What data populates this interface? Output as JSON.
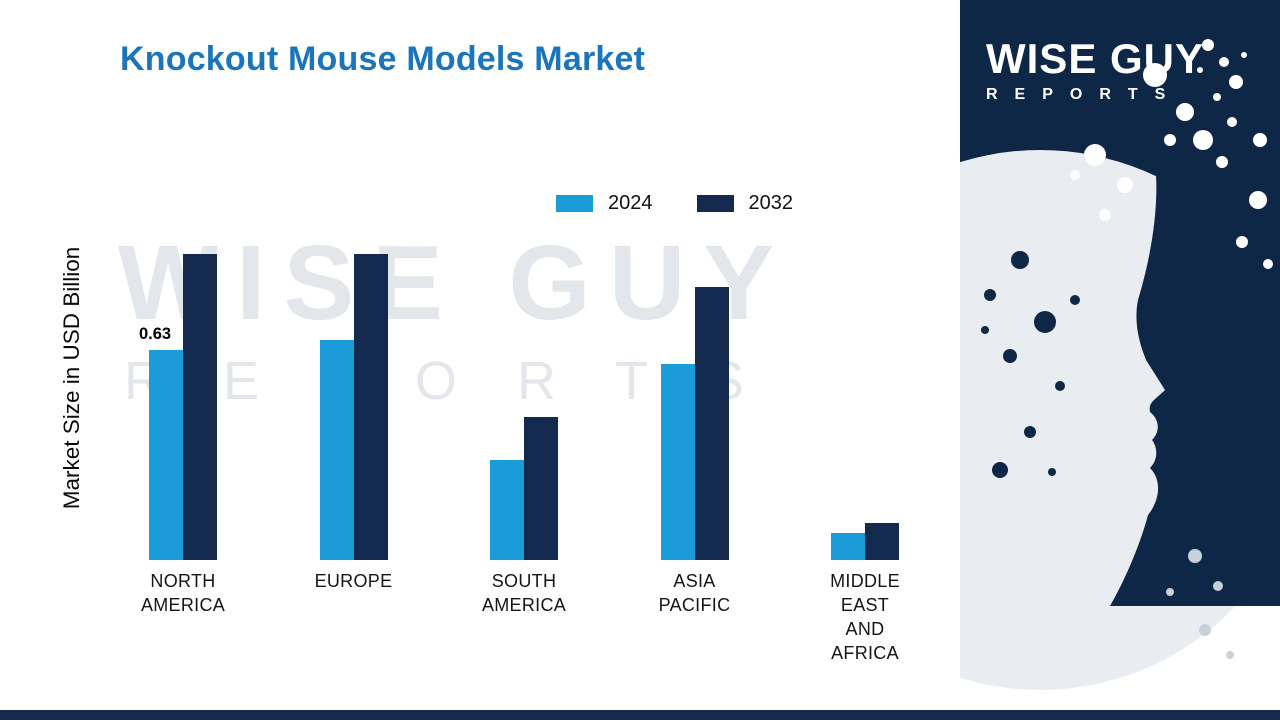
{
  "header": {
    "title": "Knockout Mouse Models Market"
  },
  "logo": {
    "name": "WISE GUY",
    "sub": "REPORTS"
  },
  "watermark": {
    "name": "WISE GUY",
    "sub": "REPORTS"
  },
  "chart_data": {
    "type": "bar",
    "title": "Knockout Mouse Models Market",
    "xlabel": "",
    "ylabel": "Market Size in USD Billion",
    "categories": [
      "NORTH AMERICA",
      "EUROPE",
      "SOUTH AMERICA",
      "ASIA PACIFIC",
      "MIDDLE EAST AND AFRICA"
    ],
    "series": [
      {
        "name": "2024",
        "color": "#1b9bd8",
        "values": [
          0.63,
          0.66,
          0.3,
          0.59,
          0.08
        ]
      },
      {
        "name": "2032",
        "color": "#13294d",
        "values": [
          0.92,
          0.92,
          0.43,
          0.82,
          0.11
        ]
      }
    ],
    "data_labels": [
      {
        "series": "2024",
        "category": "NORTH AMERICA",
        "value": "0.63"
      }
    ],
    "legend": [
      "2024",
      "2032"
    ],
    "legend_position": "top-center",
    "ylim": [
      0,
      1.0
    ],
    "grid": false
  },
  "colors": {
    "title": "#1a75bd",
    "bar_2024": "#1b9bd8",
    "bar_2032": "#13294d",
    "panel_navy": "#0e2746",
    "watermark": "#e3e6ea",
    "footer": "#14294e",
    "face_fill": "#e9edf1"
  }
}
